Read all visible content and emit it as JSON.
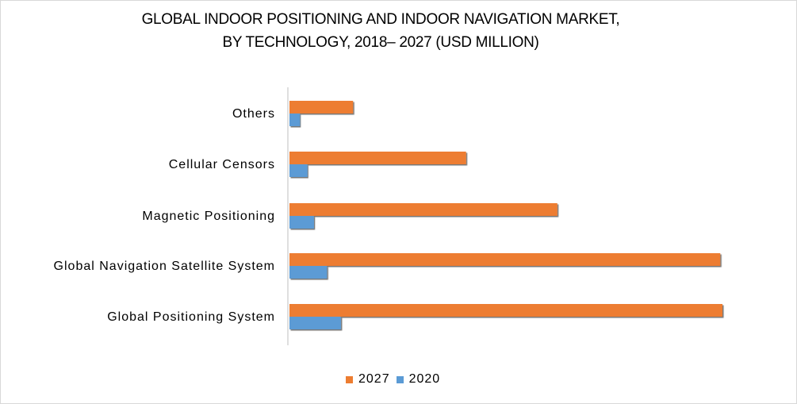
{
  "chart_data": {
    "type": "bar",
    "orientation": "horizontal",
    "title_lines": [
      "GLOBAL INDOOR POSITIONING AND INDOOR NAVIGATION MARKET,",
      "BY TECHNOLOGY, 2018– 2027 (USD MILLION)"
    ],
    "categories": [
      "Others",
      "Cellular Censors",
      "Magnetic Positioning",
      "Global Navigation Satellite System",
      "Global Positioning System"
    ],
    "series": [
      {
        "name": "2027",
        "color": "#ed7d31",
        "values": [
          150,
          410,
          620,
          995,
          1000
        ]
      },
      {
        "name": "2020",
        "color": "#5b9bd5",
        "values": [
          28,
          45,
          60,
          90,
          122
        ]
      }
    ],
    "xlim": [
      0,
      1000
    ],
    "grid": false,
    "legend_position": "bottom"
  }
}
